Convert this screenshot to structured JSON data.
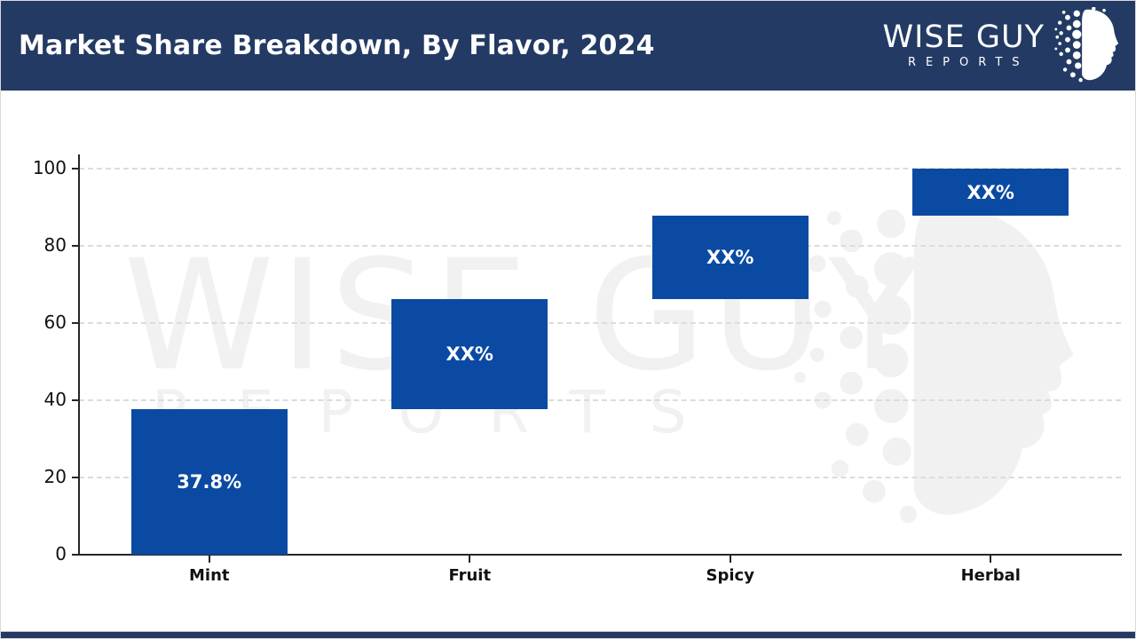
{
  "header": {
    "title": "Market Share Breakdown, By Flavor, 2024",
    "logo": {
      "line1": "WISE GUY",
      "line2": "REPORTS"
    }
  },
  "watermark": {
    "line1": "WISE GUY",
    "line2": "REPORTS"
  },
  "colors": {
    "header_bg": "#233a64",
    "footer_bg": "#233a64",
    "bar": "#0b4aa2",
    "bar_label": "#ffffff",
    "axis": "#262626",
    "gridline": "#dcdcdc",
    "tick_label": "#111111",
    "watermark": "#f1f1f1",
    "title_text": "#ffffff"
  },
  "chart_data": {
    "type": "bar",
    "subtype": "waterfall",
    "title": "Market Share Breakdown, By Flavor, 2024",
    "categories": [
      "Mint",
      "Fruit",
      "Spicy",
      "Herbal"
    ],
    "series": [
      {
        "name": "Market Share",
        "segments": [
          {
            "category": "Mint",
            "start": 0,
            "end": 37.8,
            "value": 37.8,
            "label": "37.8%"
          },
          {
            "category": "Fruit",
            "start": 37.8,
            "end": 66.2,
            "value": 28.4,
            "label": "XX%"
          },
          {
            "category": "Spicy",
            "start": 66.2,
            "end": 87.8,
            "value": 21.6,
            "label": "XX%"
          },
          {
            "category": "Herbal",
            "start": 87.8,
            "end": 100,
            "value": 12.2,
            "label": "XX%"
          }
        ]
      }
    ],
    "xlabel": "",
    "ylabel": "",
    "ylim": [
      0,
      100
    ],
    "yticks": [
      0,
      20,
      40,
      60,
      80,
      100
    ],
    "grid": "horizontal-dashed",
    "legend": "none"
  }
}
